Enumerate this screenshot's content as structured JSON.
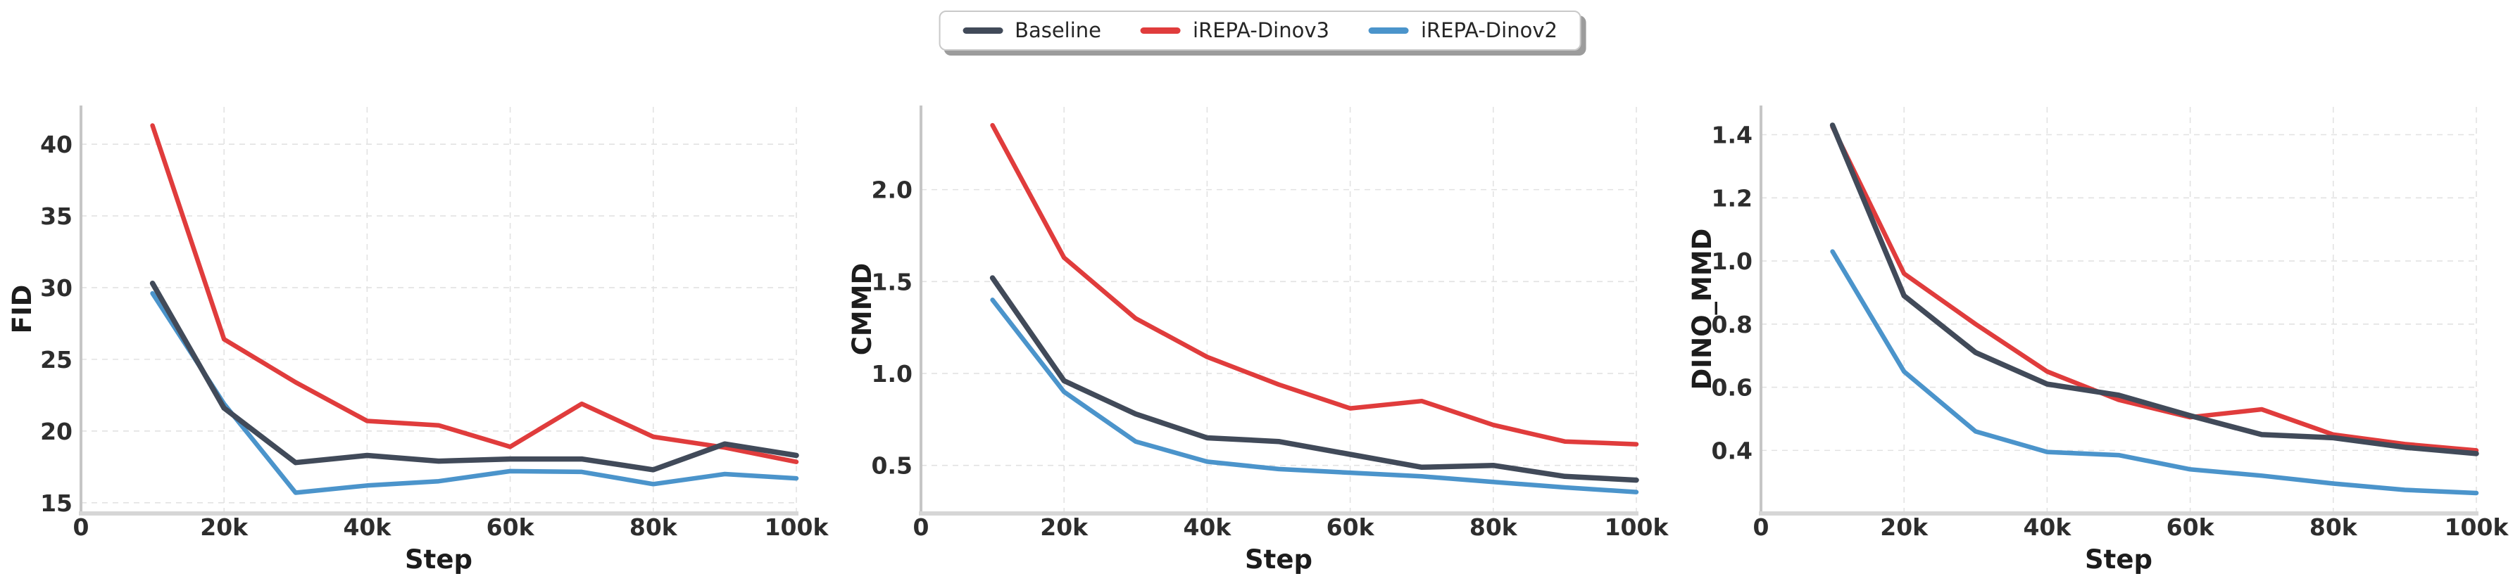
{
  "figure": {
    "background": "#ffffff",
    "grid_color": "#e2e2e2",
    "spine_color_left": "#c6c6c6",
    "spine_color_bottom": "#d6d6d6"
  },
  "legend": {
    "items": [
      {
        "label": "Baseline",
        "color": "#414A59"
      },
      {
        "label": "iREPA-Dinov3",
        "color": "#E03C3C"
      },
      {
        "label": "iREPA-Dinov2",
        "color": "#4B94CB"
      }
    ]
  },
  "chart_data": [
    {
      "type": "line",
      "title": "",
      "xlabel": "Step",
      "ylabel": "FID",
      "x": [
        10000,
        20000,
        30000,
        40000,
        50000,
        60000,
        70000,
        80000,
        90000,
        100000
      ],
      "xlim": [
        0,
        100000
      ],
      "ylim": [
        14.4,
        42.6
      ],
      "xtick_values": [
        0,
        20000,
        40000,
        60000,
        80000,
        100000
      ],
      "xtick_labels": [
        "0",
        "20k",
        "40k",
        "60k",
        "80k",
        "100k"
      ],
      "ytick_values": [
        15,
        20,
        25,
        30,
        35,
        40
      ],
      "ytick_labels": [
        "15",
        "20",
        "25",
        "30",
        "35",
        "40"
      ],
      "grid": true,
      "legend_position": "figure-top-center",
      "series": [
        {
          "name": "Baseline",
          "color": "#414A59",
          "width": 7.5,
          "zorder": 3,
          "values": [
            30.3,
            21.6,
            17.8,
            18.3,
            17.9,
            18.05,
            18.05,
            17.3,
            19.1,
            18.3
          ]
        },
        {
          "name": "iREPA-Dinov3",
          "color": "#E03C3C",
          "width": 6.5,
          "zorder": 1,
          "values": [
            41.3,
            26.4,
            23.4,
            20.7,
            20.4,
            18.9,
            21.9,
            19.6,
            18.85,
            17.85
          ]
        },
        {
          "name": "iREPA-Dinov2",
          "color": "#4B94CB",
          "width": 6.5,
          "zorder": 2,
          "values": [
            29.6,
            21.9,
            15.7,
            16.2,
            16.5,
            17.2,
            17.15,
            16.3,
            17.0,
            16.7
          ]
        }
      ]
    },
    {
      "type": "line",
      "title": "",
      "xlabel": "Step",
      "ylabel": "CMMD",
      "x": [
        10000,
        20000,
        30000,
        40000,
        50000,
        60000,
        70000,
        80000,
        90000,
        100000
      ],
      "xlim": [
        0,
        100000
      ],
      "ylim": [
        0.25,
        2.45
      ],
      "xtick_values": [
        0,
        20000,
        40000,
        60000,
        80000,
        100000
      ],
      "xtick_labels": [
        "0",
        "20k",
        "40k",
        "60k",
        "80k",
        "100k"
      ],
      "ytick_values": [
        0.5,
        1.0,
        1.5,
        2.0
      ],
      "ytick_labels": [
        "0.5",
        "1.0",
        "1.5",
        "2.0"
      ],
      "grid": true,
      "legend_position": "figure-top-center",
      "series": [
        {
          "name": "Baseline",
          "color": "#414A59",
          "width": 7.5,
          "zorder": 3,
          "values": [
            1.52,
            0.96,
            0.78,
            0.65,
            0.63,
            0.56,
            0.49,
            0.5,
            0.44,
            0.42
          ]
        },
        {
          "name": "iREPA-Dinov3",
          "color": "#E03C3C",
          "width": 6.5,
          "zorder": 1,
          "values": [
            2.35,
            1.63,
            1.3,
            1.09,
            0.94,
            0.81,
            0.85,
            0.72,
            0.63,
            0.615
          ]
        },
        {
          "name": "iREPA-Dinov2",
          "color": "#4B94CB",
          "width": 6.5,
          "zorder": 2,
          "values": [
            1.4,
            0.9,
            0.63,
            0.52,
            0.48,
            0.46,
            0.44,
            0.41,
            0.38,
            0.355
          ]
        }
      ]
    },
    {
      "type": "line",
      "title": "",
      "xlabel": "Step",
      "ylabel": "DINO_MMD",
      "x": [
        10000,
        20000,
        30000,
        40000,
        50000,
        60000,
        70000,
        80000,
        90000,
        100000
      ],
      "xlim": [
        0,
        100000
      ],
      "ylim": [
        0.207,
        1.488
      ],
      "xtick_values": [
        0,
        20000,
        40000,
        60000,
        80000,
        100000
      ],
      "xtick_labels": [
        "0",
        "20k",
        "40k",
        "60k",
        "80k",
        "100k"
      ],
      "ytick_values": [
        0.4,
        0.6,
        0.8,
        1.0,
        1.2,
        1.4
      ],
      "ytick_labels": [
        "0.4",
        "0.6",
        "0.8",
        "1.0",
        "1.2",
        "1.4"
      ],
      "grid": true,
      "legend_position": "figure-top-center",
      "series": [
        {
          "name": "Baseline",
          "color": "#414A59",
          "width": 7.5,
          "zorder": 3,
          "values": [
            1.43,
            0.89,
            0.71,
            0.61,
            0.575,
            0.51,
            0.45,
            0.44,
            0.41,
            0.39
          ]
        },
        {
          "name": "iREPA-Dinov3",
          "color": "#E03C3C",
          "width": 6.5,
          "zorder": 1,
          "values": [
            1.425,
            0.96,
            0.8,
            0.65,
            0.56,
            0.505,
            0.53,
            0.45,
            0.42,
            0.4
          ]
        },
        {
          "name": "iREPA-Dinov2",
          "color": "#4B94CB",
          "width": 6.5,
          "zorder": 2,
          "values": [
            1.03,
            0.65,
            0.46,
            0.395,
            0.385,
            0.34,
            0.32,
            0.295,
            0.275,
            0.265
          ]
        }
      ]
    }
  ]
}
